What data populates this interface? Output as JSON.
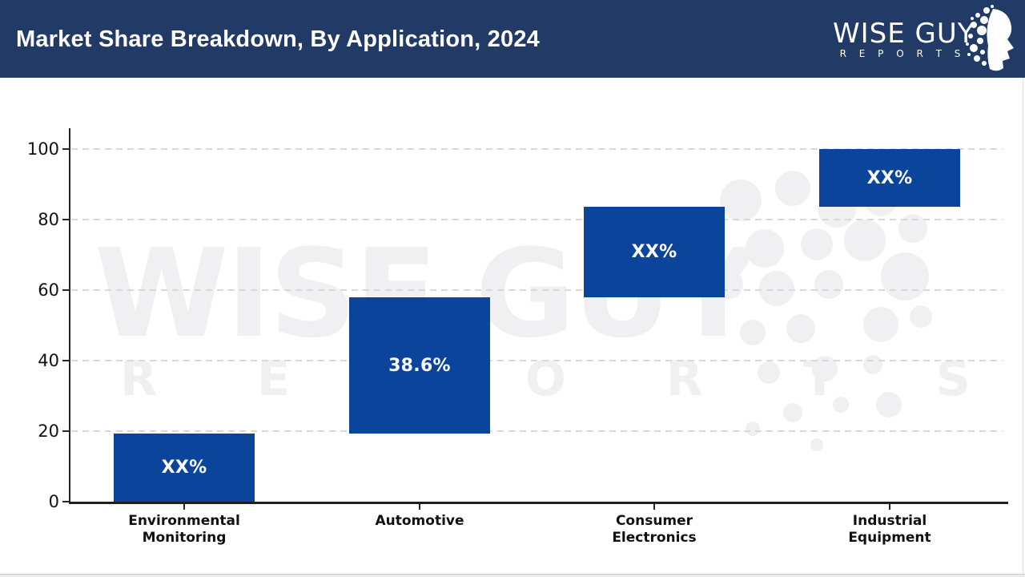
{
  "header": {
    "title": "Market Share Breakdown, By Application, 2024",
    "bg_color": "#213a66",
    "logo": {
      "line1": "WISE GUY",
      "line2": "R E P O R T S"
    }
  },
  "watermark": {
    "line1": "WISE GUY",
    "line2": "R E P O R T S"
  },
  "chart_data": {
    "type": "bar",
    "subtype": "waterfall-segmented",
    "title": "Market Share Breakdown, By Application, 2024",
    "unit": "%",
    "categories": [
      "Environmental Monitoring",
      "Automotive",
      "Consumer Electronics",
      "Industrial Equipment"
    ],
    "segments": [
      {
        "category": "Environmental Monitoring",
        "start": 0,
        "end": 19.3,
        "label": "XX%"
      },
      {
        "category": "Automotive",
        "start": 19.3,
        "end": 57.9,
        "label": "38.6%"
      },
      {
        "category": "Consumer Electronics",
        "start": 57.9,
        "end": 83.6,
        "label": "XX%"
      },
      {
        "category": "Industrial Equipment",
        "start": 83.6,
        "end": 100,
        "label": "XX%"
      }
    ],
    "yticks": [
      0,
      20,
      40,
      60,
      80,
      100
    ],
    "ylim": [
      0,
      106
    ],
    "grid": "horizontal-dashed",
    "legend": "none",
    "bar_color": "#0b459b",
    "bar_label_color": "#ffffff",
    "axis_color": "#262626",
    "gridline_color": "#d9d9d9"
  }
}
